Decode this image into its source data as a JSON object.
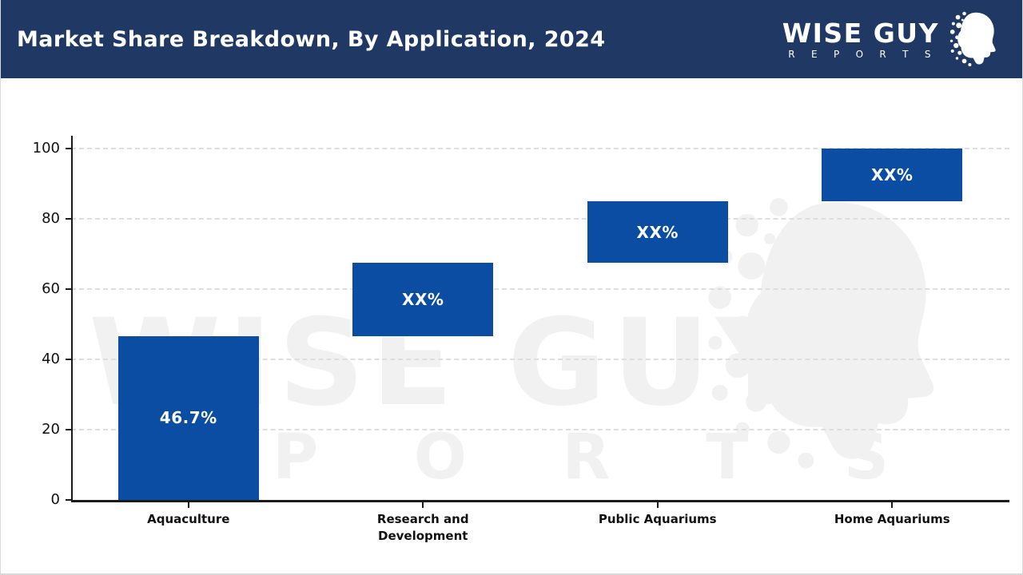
{
  "header": {
    "title": "Market Share Breakdown, By Application, 2024",
    "logo": {
      "line1": "WISE GUY",
      "line2": "REPORTS"
    }
  },
  "watermark": {
    "line1": "WISE GUY",
    "line2": "PORTS"
  },
  "chart_data": {
    "type": "bar",
    "subtype": "waterfall-floating-segments",
    "title": "Market Share Breakdown, By Application, 2024",
    "xlabel": "",
    "ylabel": "",
    "ylim": [
      0,
      100
    ],
    "yticks": [
      0,
      20,
      40,
      60,
      80,
      100
    ],
    "grid": "horizontal-dashed",
    "legend": "none",
    "bar_color": "#0b4da2",
    "value_label_color": "#ffffff",
    "categories": [
      "Aquaculture",
      "Research and Development",
      "Public Aquariums",
      "Home Aquariums"
    ],
    "segments": [
      {
        "category": "Aquaculture",
        "start": 0,
        "end": 46.7,
        "label": "46.7%"
      },
      {
        "category": "Research and Development",
        "start": 46.7,
        "end": 67.5,
        "label": "XX%"
      },
      {
        "category": "Public Aquariums",
        "start": 67.5,
        "end": 84.9,
        "label": "XX%"
      },
      {
        "category": "Home Aquariums",
        "start": 84.9,
        "end": 100,
        "label": "XX%"
      }
    ]
  },
  "colors": {
    "header_bg": "#1f3864",
    "bar": "#0b4da2",
    "gridline": "#dedede",
    "axis": "#1a1a1a",
    "watermark": "#f1f1f1",
    "page_border": "#d9d9d9"
  }
}
